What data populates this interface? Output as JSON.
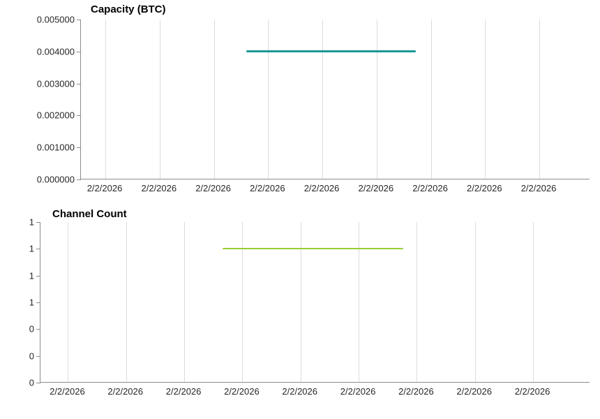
{
  "page": {
    "background": "#ffffff"
  },
  "colors": {
    "gridline": "#dcdcdc",
    "axis": "#8c8c8c",
    "text": "#262626",
    "capacity_line": "#1a9898",
    "channel_line": "#9acd32"
  },
  "chart_data": [
    {
      "type": "line",
      "title": "Capacity (BTC)",
      "xlabel": "",
      "ylabel": "",
      "ylim": [
        0,
        0.005
      ],
      "y_tick_labels": [
        "0.005000",
        "0.004000",
        "0.003000",
        "0.002000",
        "0.001000",
        "0.000000"
      ],
      "x_tick_labels": [
        "2/2/2026",
        "2/2/2026",
        "2/2/2026",
        "2/2/2026",
        "2/2/2026",
        "2/2/2026",
        "2/2/2026",
        "2/2/2026",
        "2/2/2026"
      ],
      "grid": "vertical",
      "legend": "none",
      "series": [
        {
          "name": "Capacity (BTC)",
          "color": "#1a9898",
          "value": 0.004,
          "x_span_fraction": [
            0.325,
            0.658
          ]
        }
      ]
    },
    {
      "type": "line",
      "title": "Channel Count",
      "xlabel": "",
      "ylabel": "",
      "ylim": [
        0,
        1.2
      ],
      "y_tick_labels": [
        "1",
        "1",
        "1",
        "1",
        "0",
        "0",
        "0"
      ],
      "x_tick_labels": [
        "2/2/2026",
        "2/2/2026",
        "2/2/2026",
        "2/2/2026",
        "2/2/2026",
        "2/2/2026",
        "2/2/2026",
        "2/2/2026",
        "2/2/2026"
      ],
      "grid": "vertical",
      "legend": "none",
      "series": [
        {
          "name": "Channel Count",
          "color": "#9acd32",
          "value": 1,
          "x_span_fraction": [
            0.331,
            0.66
          ]
        }
      ]
    }
  ]
}
